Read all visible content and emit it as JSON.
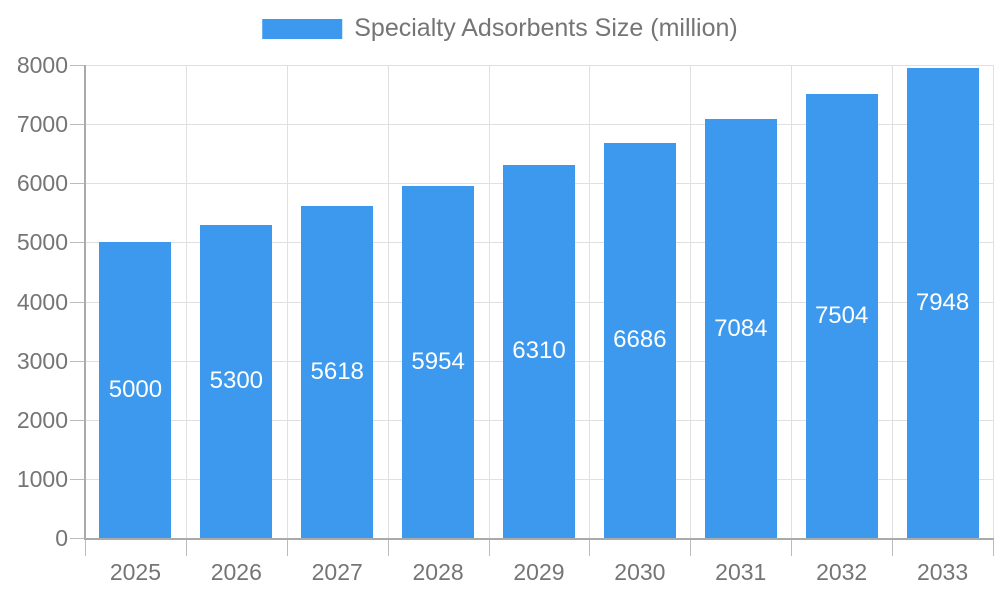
{
  "chart_data": {
    "type": "bar",
    "title": "Specialty Adsorbents Size (million)",
    "categories": [
      "2025",
      "2026",
      "2027",
      "2028",
      "2029",
      "2030",
      "2031",
      "2032",
      "2033"
    ],
    "values": [
      5000,
      5300,
      5618,
      5954,
      6310,
      6686,
      7084,
      7504,
      7948
    ],
    "xlabel": "",
    "ylabel": "",
    "ylim": [
      0,
      8000
    ],
    "yticks": [
      0,
      1000,
      2000,
      3000,
      4000,
      5000,
      6000,
      7000,
      8000
    ],
    "grid": true,
    "value_labels_position": "inside-center",
    "legend": {
      "label": "Specialty Adsorbents Size (million)",
      "position": "top-center",
      "swatch_color": "#3C99EE"
    },
    "colors": {
      "bar": "#3C99EE",
      "bar_value_text": "#FFFFFF",
      "axis_text": "#757575",
      "axis_line": "#AAAAAA",
      "tick": "#BBBBBB",
      "gridline": "#E0E0E0",
      "background": "#FFFFFF"
    }
  }
}
